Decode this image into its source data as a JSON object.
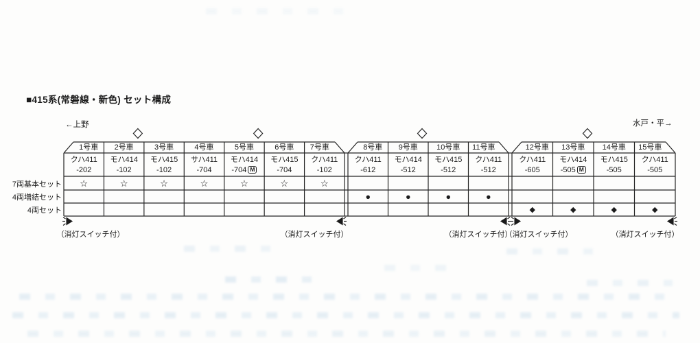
{
  "title": "■415系(常磐線・新色) セット構成",
  "direction_left": "←上野",
  "direction_right": "水戸・平→",
  "light_note": "（消灯スイッチ付）",
  "motor_badge": "M",
  "sets": [
    {
      "label": "7両基本セット",
      "marker": "☆"
    },
    {
      "label": "4両増結セット",
      "marker": "●"
    },
    {
      "label": "4両セット",
      "marker": "◆"
    }
  ],
  "cars": [
    {
      "number": "1号車",
      "type": "クハ411",
      "suffix": "-202",
      "set": 0,
      "motor": false,
      "pantograph": false,
      "light": "left"
    },
    {
      "number": "2号車",
      "type": "モハ414",
      "suffix": "-102",
      "set": 0,
      "motor": false,
      "pantograph": true,
      "light": null
    },
    {
      "number": "3号車",
      "type": "モハ415",
      "suffix": "-102",
      "set": 0,
      "motor": false,
      "pantograph": false,
      "light": null
    },
    {
      "number": "4号車",
      "type": "サハ411",
      "suffix": "-704",
      "set": 0,
      "motor": false,
      "pantograph": false,
      "light": null
    },
    {
      "number": "5号車",
      "type": "モハ414",
      "suffix": "-704",
      "set": 0,
      "motor": true,
      "pantograph": true,
      "light": null
    },
    {
      "number": "6号車",
      "type": "モハ415",
      "suffix": "-704",
      "set": 0,
      "motor": false,
      "pantograph": false,
      "light": null
    },
    {
      "number": "7号車",
      "type": "クハ411",
      "suffix": "-102",
      "set": 0,
      "motor": false,
      "pantograph": false,
      "light": "right"
    },
    {
      "number": "8号車",
      "type": "クハ411",
      "suffix": "-612",
      "set": 1,
      "motor": false,
      "pantograph": false,
      "light": null
    },
    {
      "number": "9号車",
      "type": "モハ414",
      "suffix": "-512",
      "set": 1,
      "motor": false,
      "pantograph": true,
      "light": null
    },
    {
      "number": "10号車",
      "type": "モハ415",
      "suffix": "-512",
      "set": 1,
      "motor": false,
      "pantograph": false,
      "light": null
    },
    {
      "number": "11号車",
      "type": "クハ411",
      "suffix": "-512",
      "set": 1,
      "motor": false,
      "pantograph": false,
      "light": "right"
    },
    {
      "number": "12号車",
      "type": "クハ411",
      "suffix": "-605",
      "set": 2,
      "motor": false,
      "pantograph": false,
      "light": "left"
    },
    {
      "number": "13号車",
      "type": "モハ414",
      "suffix": "-505",
      "set": 2,
      "motor": true,
      "pantograph": true,
      "light": null
    },
    {
      "number": "14号車",
      "type": "モハ415",
      "suffix": "-505",
      "set": 2,
      "motor": false,
      "pantograph": false,
      "light": null
    },
    {
      "number": "15号車",
      "type": "クハ411",
      "suffix": "-505",
      "set": 2,
      "motor": false,
      "pantograph": false,
      "light": "right"
    }
  ]
}
